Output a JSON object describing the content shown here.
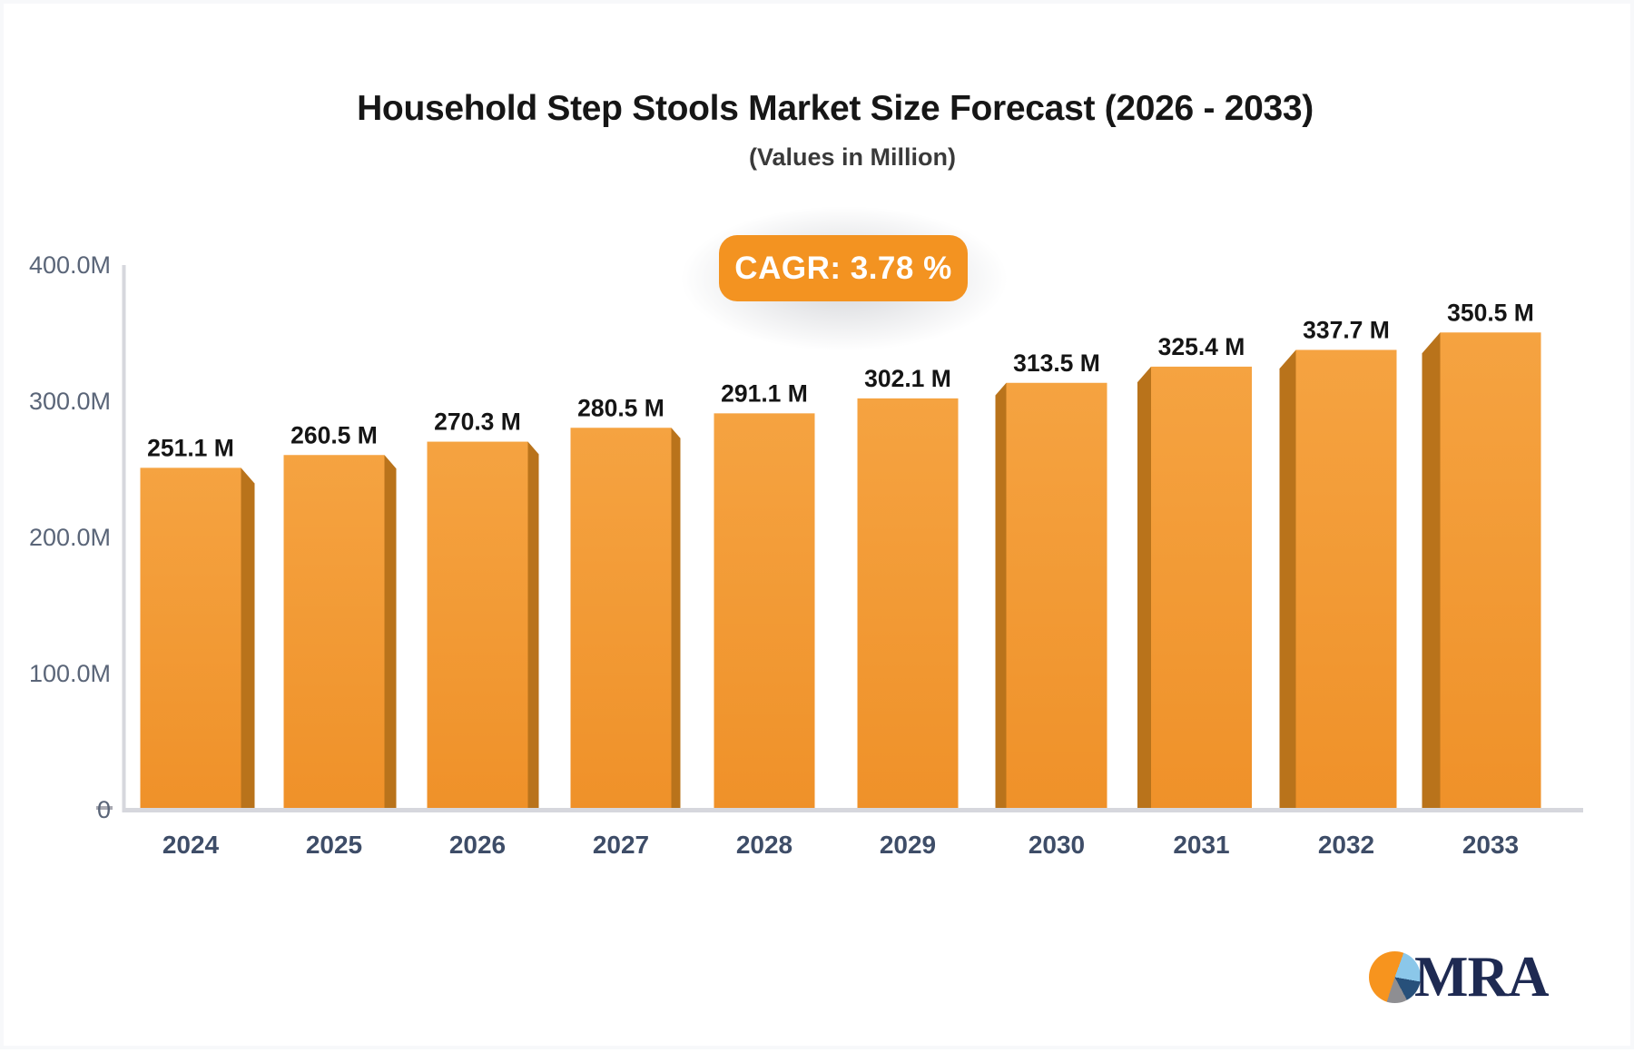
{
  "header": {
    "title": "Household Step Stools Market Size Forecast (2026 - 2033)",
    "subtitle": "(Values in Million)"
  },
  "badge": {
    "label": "CAGR: 3.78 %"
  },
  "chart_data": {
    "type": "bar",
    "title": "Household Step Stools Market Size Forecast (2026 - 2033)",
    "subtitle": "(Values in Million)",
    "cagr_label": "CAGR: 3.78 %",
    "categories": [
      "2024",
      "2025",
      "2026",
      "2027",
      "2028",
      "2029",
      "2030",
      "2031",
      "2032",
      "2033"
    ],
    "values": [
      251.1,
      260.5,
      270.3,
      280.5,
      291.1,
      302.1,
      313.5,
      325.4,
      337.7,
      350.5
    ],
    "value_labels": [
      "251.1 M",
      "260.5 M",
      "270.3 M",
      "280.5 M",
      "291.1 M",
      "302.1 M",
      "313.5 M",
      "325.4 M",
      "337.7 M",
      "350.5 M"
    ],
    "unit": "Million",
    "xlabel": "",
    "ylabel": "",
    "ylim": [
      0,
      400
    ],
    "yticks": [
      {
        "value": 0,
        "label": "0"
      },
      {
        "value": 100,
        "label": "100.0M"
      },
      {
        "value": 200,
        "label": "200.0M"
      },
      {
        "value": 300,
        "label": "300.0M"
      },
      {
        "value": 400,
        "label": "400.0M"
      }
    ],
    "grid": false,
    "legend": "none",
    "bar_style": "3d-perspective-columns"
  },
  "colors": {
    "bar_face_top": "#F5A341",
    "bar_face_bottom": "#EF9129",
    "bar_side": "#B9731B",
    "badge_bg": "#F39321",
    "badge_text": "#FFFFFF",
    "axis_line": "#D6D7DD",
    "zero_tick": "#A9AAB2",
    "tick_text": "#5A6578",
    "year_text": "#3E4D68",
    "value_text": "#151515",
    "logo_navy": "#1E2A52",
    "logo_orange": "#F7941E",
    "logo_blue": "#8BC7E9",
    "logo_steel": "#27507A",
    "logo_gray": "#8E8E92"
  },
  "logo": {
    "text": "MRA"
  }
}
